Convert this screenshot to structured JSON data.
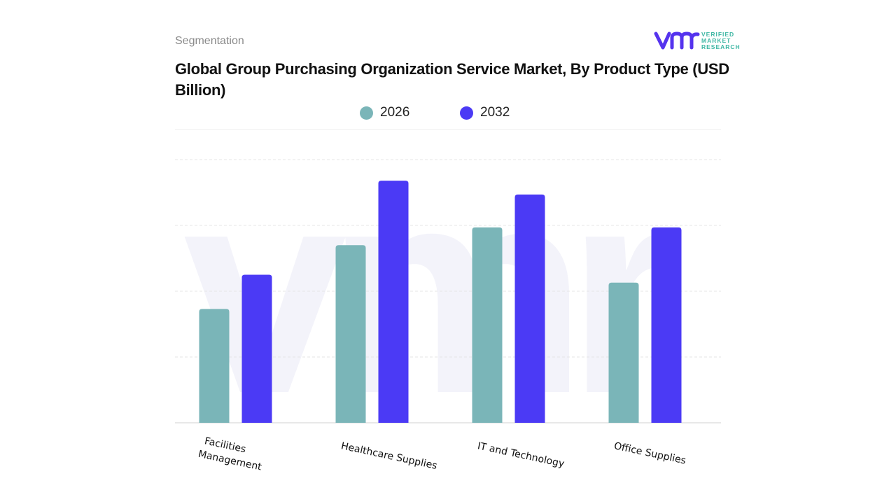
{
  "header": {
    "segment_label": "Segmentation",
    "title": "Global Group Purchasing Organization Service Market, By Product Type (USD Billion)"
  },
  "logo": {
    "text_lines": [
      "VERIFIED",
      "MARKET",
      "RESEARCH"
    ],
    "color": "#5533ee"
  },
  "chart_data": {
    "type": "bar",
    "title": "Global Group Purchasing Organization Service Market, By Product Type (USD Billion)",
    "categories": [
      "Facilities Management",
      "Healthcare Supplies",
      "IT and Technology",
      "Office Supplies"
    ],
    "series": [
      {
        "name": "2026",
        "color": "#7ab5b8",
        "values": [
          1.73,
          2.7,
          2.97,
          2.13
        ]
      },
      {
        "name": "2032",
        "color": "#4b3af5",
        "values": [
          2.25,
          3.68,
          3.47,
          2.97
        ]
      }
    ],
    "ylim": [
      0,
      4
    ],
    "grid": true,
    "legend": "top",
    "xlabel": "",
    "ylabel": ""
  }
}
